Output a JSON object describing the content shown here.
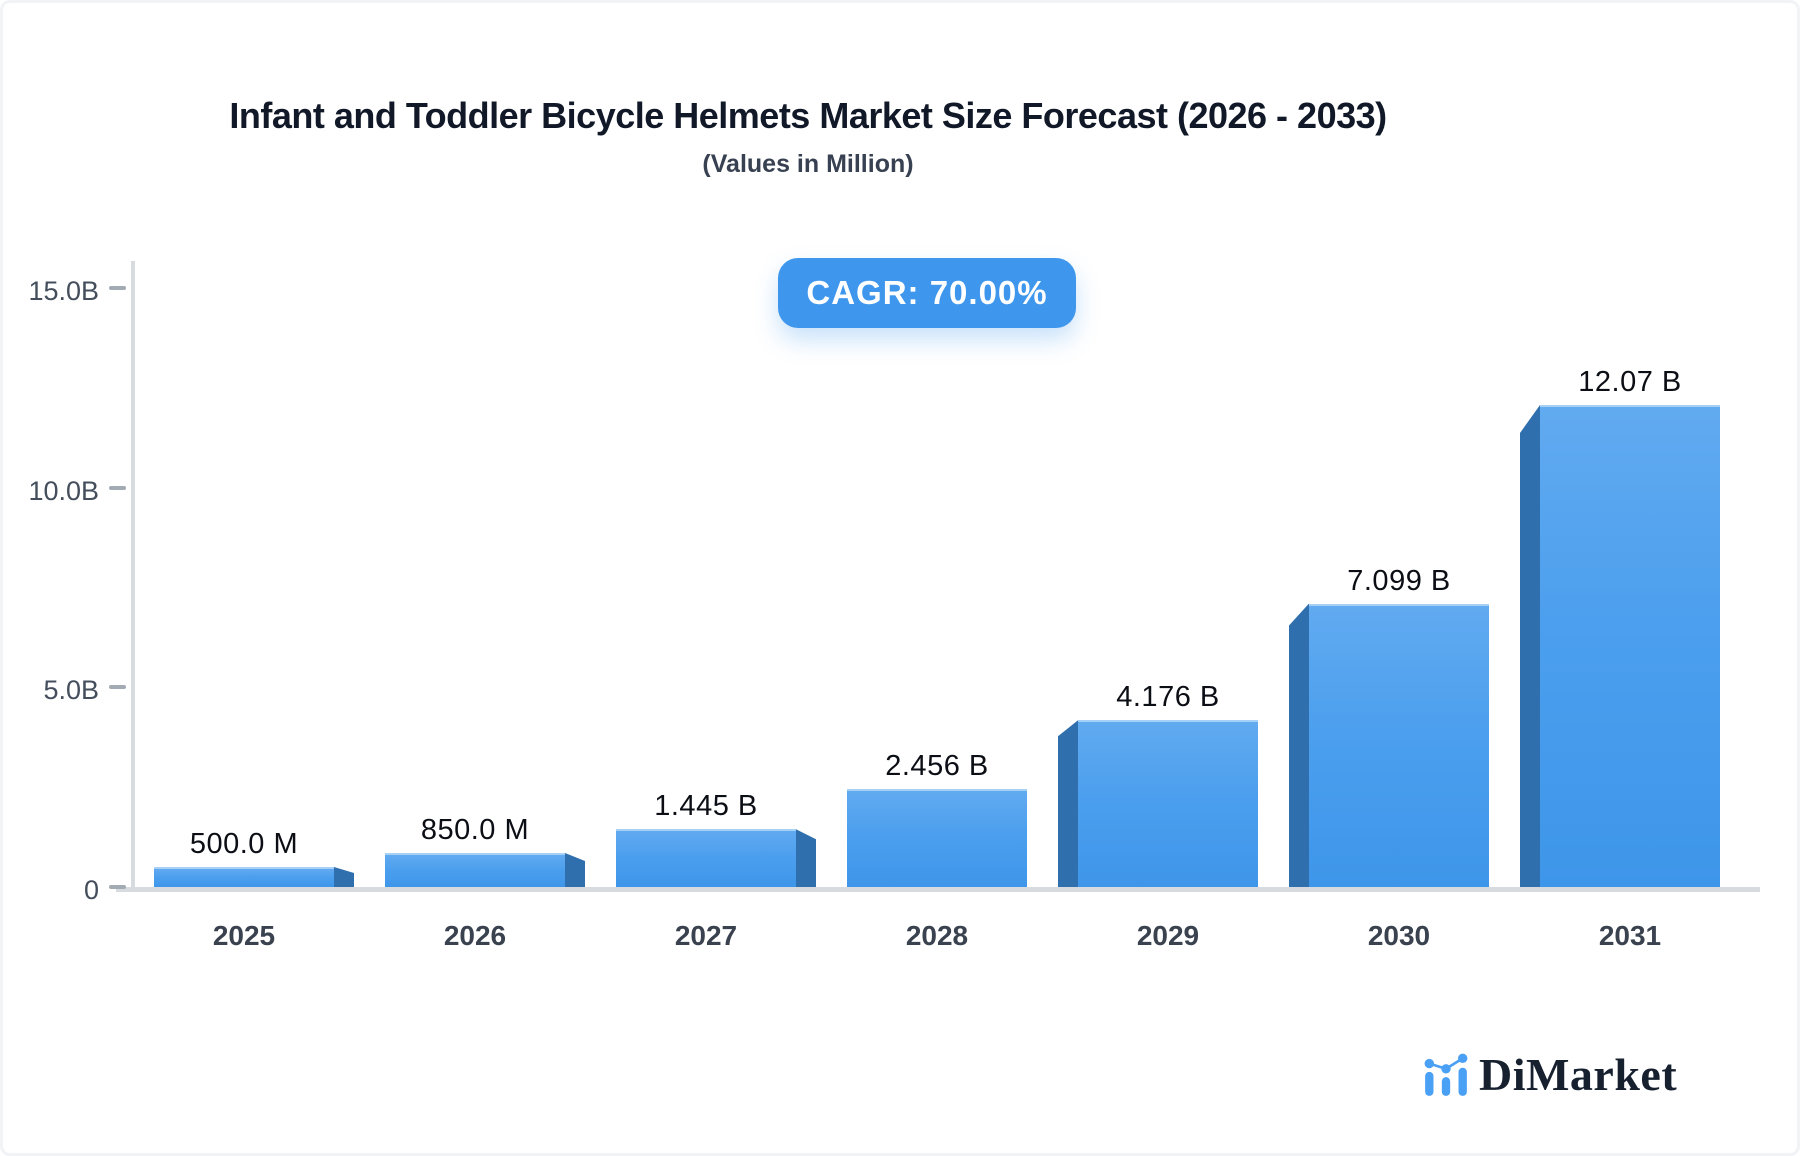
{
  "title": "Infant and Toddler Bicycle Helmets Market Size Forecast (2026 - 2033)",
  "subtitle": "(Values in Million)",
  "badge": {
    "label": "CAGR: 70.00%"
  },
  "branding": {
    "logo_text": "DiMarket",
    "logo_icon": "bar-chart-with-dots-icon"
  },
  "colors": {
    "bar_face_top": "#61aaf0",
    "bar_face_bottom": "#3e96ea",
    "bar_side": "#2f6fad",
    "badge_bg": "#3e97ed",
    "axis_line": "#d7dade",
    "tick_text": "#444e5c",
    "value_text": "#0b0e14",
    "logo_blue": "#4aa0f5",
    "logo_navy": "#16202e"
  },
  "chart_data": {
    "type": "bar",
    "categories": [
      "2025",
      "2026",
      "2027",
      "2028",
      "2029",
      "2030",
      "2031"
    ],
    "values": [
      0.5,
      0.85,
      1.445,
      2.456,
      4.176,
      7.099,
      12.07
    ],
    "unit": "billions",
    "value_labels": [
      "500.0 M",
      "850.0 M",
      "1.445 B",
      "2.456 B",
      "4.176 B",
      "7.099 B",
      "12.07 B"
    ],
    "title": "Infant and Toddler Bicycle Helmets Market Size Forecast (2026 - 2033)",
    "subtitle": "(Values in Million)",
    "annotation": "CAGR: 70.00%",
    "xlabel": "",
    "ylabel": "",
    "y_axis": {
      "tick_labels": [
        "0",
        "5.0B",
        "10.0B",
        "15.0B"
      ],
      "tick_values": [
        0,
        5,
        10,
        15
      ],
      "range": [
        0,
        15
      ]
    },
    "grid": false,
    "legend": false,
    "bar_style": "3d-perspective-blue"
  }
}
